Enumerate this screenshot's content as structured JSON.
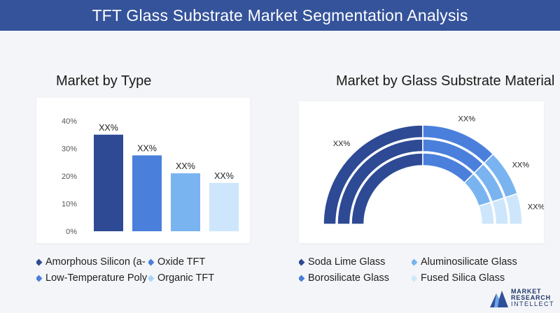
{
  "title": "TFT Glass Substrate Market Segmentation Analysis",
  "left": {
    "title": "Market by Type",
    "legend": [
      {
        "label": "Amorphous Silicon (a-",
        "color": "#2e4a94"
      },
      {
        "label": "Oxide TFT",
        "color": "#4a7fdc"
      },
      {
        "label": "Low-Temperature Poly",
        "color": "#4a7fdc"
      },
      {
        "label": "Organic TFT",
        "color": "#a8d4f7"
      }
    ]
  },
  "right": {
    "title": "Market by Glass Substrate Material",
    "legend": [
      {
        "label": "Soda Lime Glass",
        "color": "#2e4a94"
      },
      {
        "label": "Aluminosilicate Glass",
        "color": "#7ab4f0"
      },
      {
        "label": "Borosilicate Glass",
        "color": "#4a7fdc"
      },
      {
        "label": "Fused Silica Glass",
        "color": "#cfe7fb"
      }
    ]
  },
  "logo": {
    "line1": "MARKET",
    "line2": "RESEARCH",
    "line3": "INTELLECT"
  },
  "chart_data": [
    {
      "type": "bar",
      "title": "Market by Type",
      "yticks": [
        "0%",
        "10%",
        "20%",
        "30%",
        "40%"
      ],
      "ylim": [
        0,
        40
      ],
      "grid": false,
      "values": [
        35,
        27.5,
        21,
        17.5
      ],
      "data_labels": [
        "XX%",
        "XX%",
        "XX%",
        "XX%"
      ],
      "colors": [
        "#2e4a94",
        "#4a7fdc",
        "#7ab4f0",
        "#cde6fb"
      ]
    },
    {
      "type": "pie",
      "title": "Market by Glass Substrate Material",
      "shape": "half-donut, multiple rings",
      "values": [
        50,
        25,
        15,
        10
      ],
      "data_labels": [
        "XX%",
        "XX%",
        "XX%",
        "XX%"
      ],
      "colors": [
        "#2e4a94",
        "#4a7fdc",
        "#7ab4f0",
        "#cde6fb"
      ]
    }
  ]
}
